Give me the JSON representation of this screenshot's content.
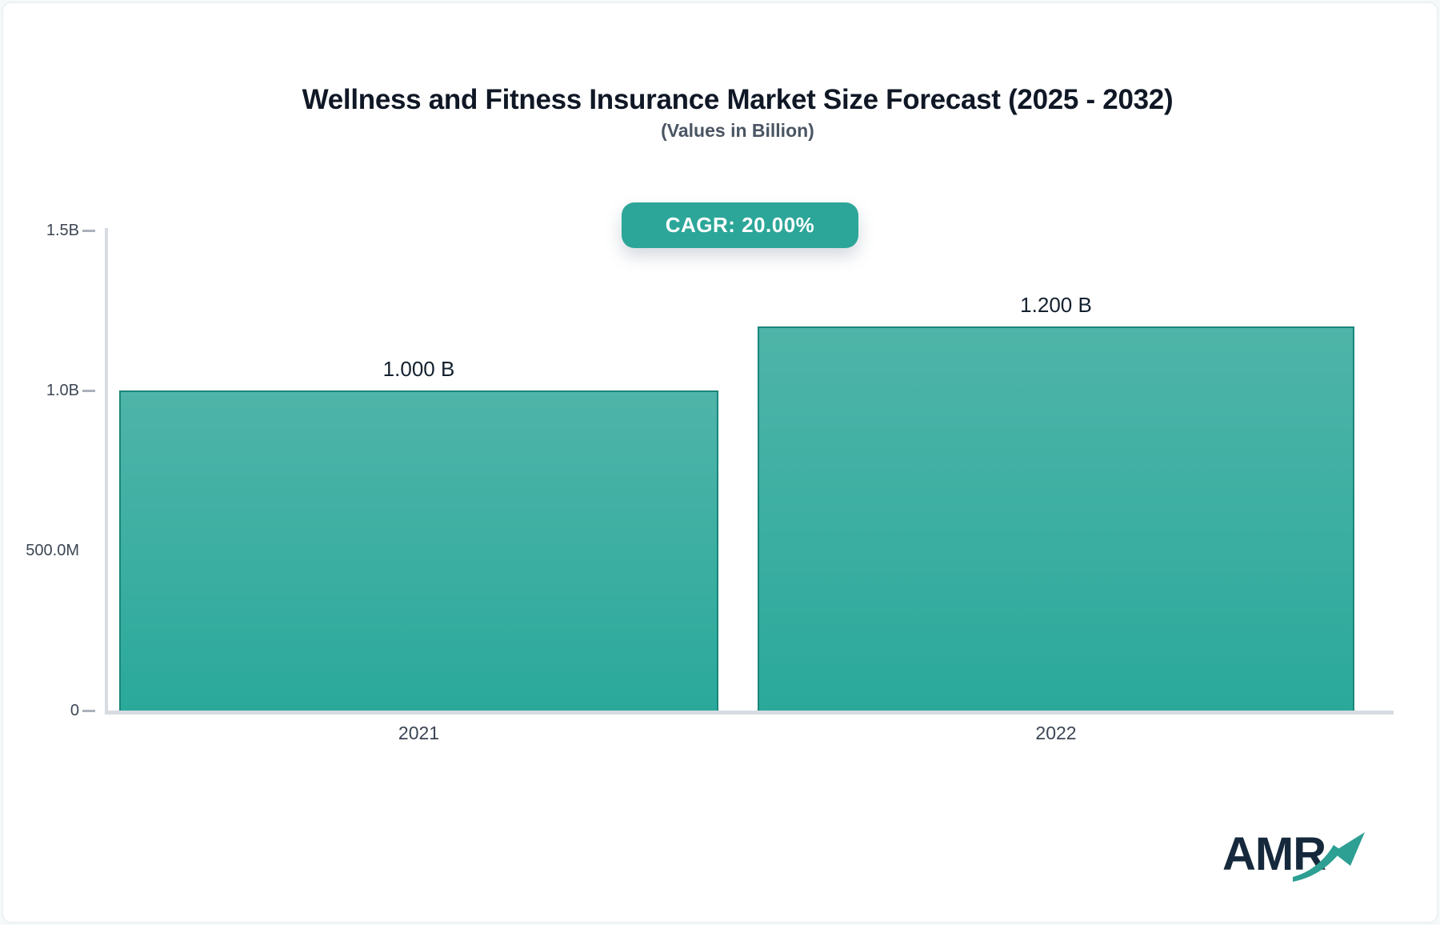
{
  "header": {
    "title": "Wellness and Fitness Insurance Market Size Forecast (2025 - 2032)",
    "subtitle": "(Values in Billion)",
    "cagr_badge": "CAGR: 20.00%"
  },
  "chart_data": {
    "type": "bar",
    "title": "Wellness and Fitness Insurance Market Size Forecast (2025 - 2032)",
    "subtitle": "(Values in Billion)",
    "cagr_percent": 20.0,
    "categories": [
      "2021",
      "2022"
    ],
    "values": [
      1.0,
      1.2
    ],
    "value_labels": [
      "1.000 B",
      "1.200 B"
    ],
    "unit": "Billion",
    "xlabel": "",
    "ylabel": "",
    "ylim": [
      0,
      1.5
    ],
    "yticks": [
      {
        "value": 1.5,
        "label": "1.5B"
      },
      {
        "value": 1.0,
        "label": "1.0B"
      },
      {
        "value": 0.5,
        "label": "500.0M"
      },
      {
        "value": 0.0,
        "label": "0"
      }
    ],
    "grid": false,
    "legend_position": "none",
    "colors": {
      "bar_gradient_top": "#4fb4a9",
      "bar_gradient_bottom": "#2aa99b",
      "bar_border": "#1a8679",
      "badge_background": "#2ca699",
      "axis_line": "#d7dbe2",
      "tick_dash": "#aab1bb"
    }
  },
  "logo": {
    "text": "AMR",
    "text_color": "#16293c",
    "arrow_color": "#2d9f93"
  }
}
